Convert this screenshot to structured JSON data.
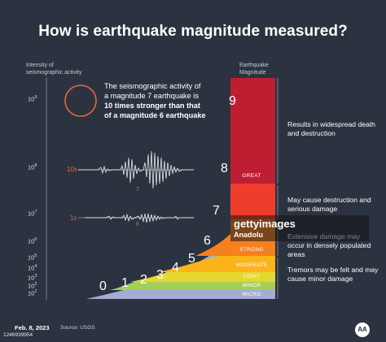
{
  "title": "How is earthquake magnitude measured?",
  "left_axis_title": "Intensity of seismographic activity",
  "right_axis_title": "Earthquake Magnitude",
  "ticks": [
    {
      "base": "10",
      "exp": "9"
    },
    {
      "base": "10",
      "exp": "8"
    },
    {
      "base": "10",
      "exp": "7"
    },
    {
      "base": "10",
      "exp": "6"
    },
    {
      "base": "10",
      "exp": "5"
    },
    {
      "base": "10",
      "exp": "4"
    },
    {
      "base": "10",
      "exp": "3"
    },
    {
      "base": "10",
      "exp": "2"
    },
    {
      "base": "10",
      "exp": "1"
    }
  ],
  "callout": {
    "line1": "The seismographic activity of",
    "line2": "a magnitude 7 earthquake is",
    "bold1": "10 times stronger than that",
    "bold2": "of a magnitude 6 earthquake"
  },
  "wave_labels": {
    "mult_10x": "10x",
    "mag_7": "7",
    "mult_1x": "1x",
    "mag_6": "6"
  },
  "magnitudes": [
    "0",
    "1",
    "2",
    "3",
    "4",
    "5",
    "6",
    "7",
    "8",
    "9"
  ],
  "bands": [
    "GREAT",
    "STRONG",
    "MODERATE",
    "LIGHT",
    "MINOR",
    "MICRO"
  ],
  "descriptions": [
    "Results in widespread death and destruction",
    "May cause destruction and serious damage",
    "Extensive damage may occur in densely populated areas",
    "Tremors may be felt and may cause minor damage"
  ],
  "colors": {
    "background": "#2b3340",
    "great": "#bf1e32",
    "major": "#ee3e2b",
    "strong": "#f7801e",
    "moderate": "#fbb41a",
    "light": "#e4d831",
    "minor": "#a3cf57",
    "micro": "#a7aad4",
    "accent": "#e8683a"
  },
  "watermark": {
    "logo": "gettyimages",
    "credit": "Anadolu"
  },
  "footer": {
    "date": "Feb. 8, 2023",
    "source": "Source: USGS",
    "id": "1246939954",
    "agency_logo": "AA"
  }
}
